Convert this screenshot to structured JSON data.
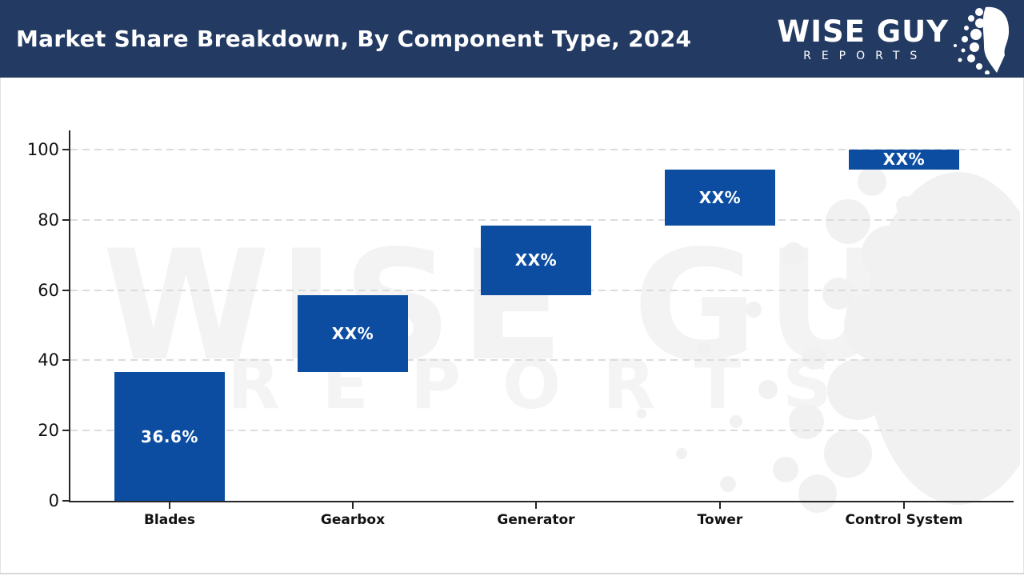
{
  "header": {
    "title": "Market Share Breakdown, By Component Type, 2024",
    "logo": {
      "line1": "WISE GUY",
      "line2": "REPORTS"
    },
    "bg_color": "#233a63"
  },
  "watermark": {
    "line1": "WISE GUY",
    "line2": "REPORTS"
  },
  "chart_data": {
    "type": "bar",
    "subtype": "waterfall",
    "title": "Market Share Breakdown, By Component Type, 2024",
    "categories": [
      "Blades",
      "Gearbox",
      "Generator",
      "Tower",
      "Control System"
    ],
    "segments": [
      {
        "category": "Blades",
        "label": "36.6%",
        "start": 0,
        "end": 36.6
      },
      {
        "category": "Gearbox",
        "label": "XX%",
        "start": 36.6,
        "end": 58.6
      },
      {
        "category": "Generator",
        "label": "XX%",
        "start": 58.6,
        "end": 78.3
      },
      {
        "category": "Tower",
        "label": "XX%",
        "start": 78.3,
        "end": 94.4
      },
      {
        "category": "Control System",
        "label": "XX%",
        "start": 94.4,
        "end": 100
      }
    ],
    "xlabel": "",
    "ylabel": "",
    "ylim": [
      0,
      105
    ],
    "yticks": [
      0,
      20,
      40,
      60,
      80,
      100
    ],
    "grid": "dashed horizontal",
    "legend": "none",
    "bar_color": "#0c4da2",
    "value_label_color": "#ffffff",
    "axis_color": "#262626",
    "gridline_color": "#dcdcdc"
  }
}
